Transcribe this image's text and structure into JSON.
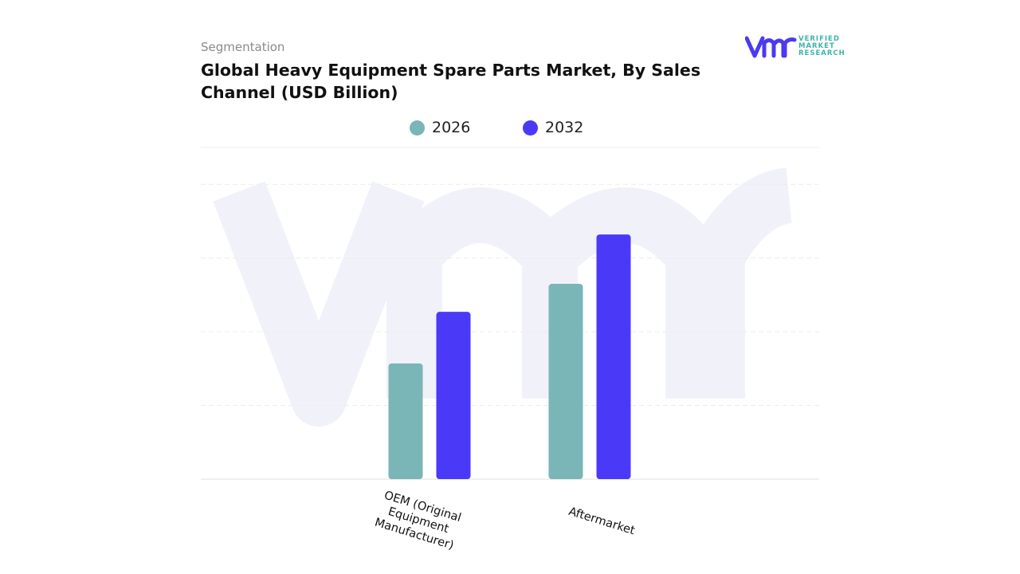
{
  "header": {
    "segment_label": "Segmentation",
    "title": "Global Heavy Equipment Spare Parts Market, By Sales Channel (USD Billion)"
  },
  "logo": {
    "mark": "vmr",
    "text_lines": [
      "VERIFIED",
      "MARKET",
      "RESEARCH"
    ],
    "color": "#4a3af0",
    "text_color": "#3fb4a8"
  },
  "chart_data": {
    "type": "bar",
    "title": "Global Heavy Equipment Spare Parts Market, By Sales Channel (USD Billion)",
    "categories": [
      "OEM (Original Equipment Manufacturer)",
      "Aftermarket"
    ],
    "series": [
      {
        "name": "2026",
        "color": "#7ab5b8",
        "values": [
          1.57,
          2.65
        ]
      },
      {
        "name": "2032",
        "color": "#4a3af8",
        "values": [
          2.27,
          3.32
        ]
      }
    ],
    "xlabel": "",
    "ylabel": "",
    "ylim": [
      0,
      4.5
    ],
    "y_tick_labels_shown": false,
    "grid": true,
    "legend": "top-center"
  }
}
